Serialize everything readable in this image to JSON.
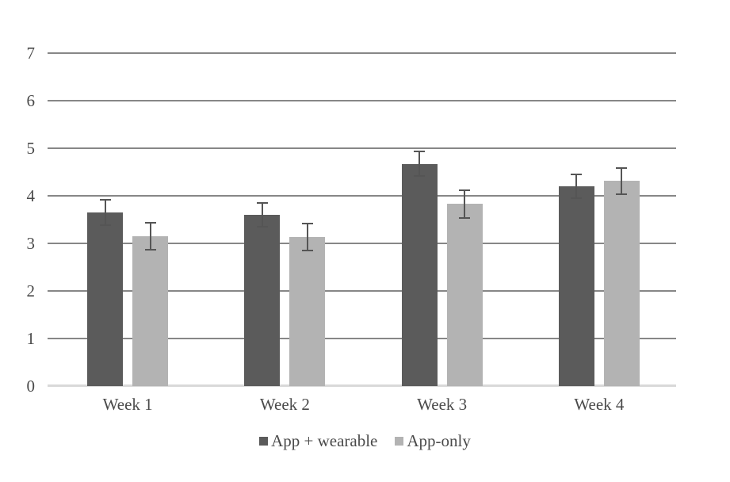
{
  "chart_data": {
    "type": "bar",
    "title": "",
    "xlabel": "",
    "ylabel": "",
    "categories": [
      "Week 1",
      "Week 2",
      "Week 3",
      "Week 4"
    ],
    "series": [
      {
        "name": "App + wearable",
        "color": "#5b5b5b",
        "values": [
          3.65,
          3.6,
          4.67,
          4.2
        ],
        "errors": [
          0.27,
          0.25,
          0.26,
          0.25
        ]
      },
      {
        "name": "App-only",
        "color": "#b3b3b3",
        "values": [
          3.15,
          3.13,
          3.83,
          4.31
        ],
        "errors": [
          0.28,
          0.28,
          0.29,
          0.28
        ]
      }
    ],
    "ylim": [
      0,
      7
    ],
    "yticks": [
      0,
      1,
      2,
      3,
      4,
      5,
      6,
      7
    ],
    "grid": true,
    "error_bars": true,
    "legend_position": "bottom",
    "colors": {
      "gridline": "#878787",
      "baseline": "#d9d9d9",
      "error_bar": "#555555",
      "text": "#4a4a4a"
    }
  }
}
